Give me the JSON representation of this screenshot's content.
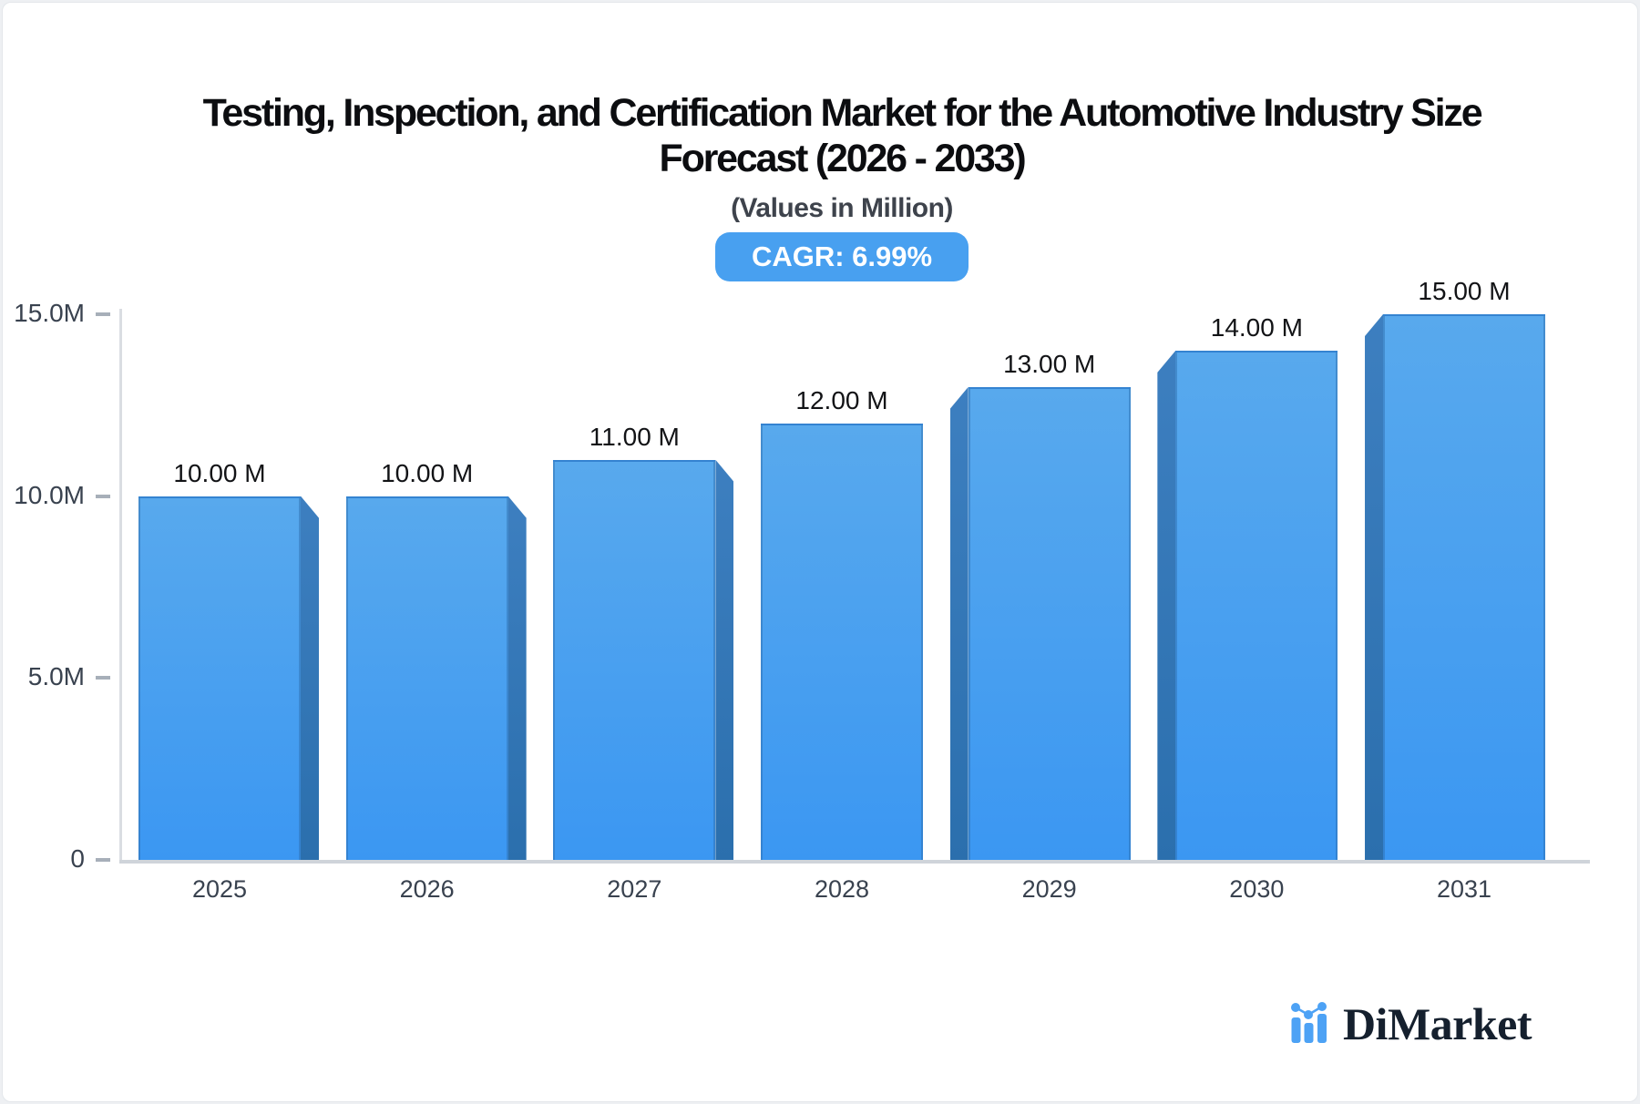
{
  "header": {
    "title_line1": "Testing, Inspection, and Certification Market for the Automotive Industry Size",
    "title_line2": "Forecast (2026 - 2033)",
    "subtitle": "(Values in Million)",
    "cagr_badge": "CAGR: 6.99%"
  },
  "chart_data": {
    "type": "bar",
    "title": "Testing, Inspection, and Certification Market for the Automotive Industry Size Forecast (2026 - 2033)",
    "subtitle": "(Values in Million)",
    "cagr": "6.99%",
    "categories": [
      "2025",
      "2026",
      "2027",
      "2028",
      "2029",
      "2030",
      "2031"
    ],
    "values": [
      10,
      10,
      11,
      12,
      13,
      14,
      15
    ],
    "value_labels": [
      "10.00 M",
      "10.00 M",
      "11.00 M",
      "12.00 M",
      "13.00 M",
      "14.00 M",
      "15.00 M"
    ],
    "unit": "Million",
    "ylim": [
      0,
      15
    ],
    "y_ticks": [
      {
        "value": 15,
        "label": "15.0M"
      },
      {
        "value": 10,
        "label": "10.0M"
      },
      {
        "value": 5,
        "label": "5.0M"
      },
      {
        "value": 0,
        "label": "0"
      }
    ],
    "grid": false,
    "legend": "none",
    "colors": {
      "bar_top": "#58a9ed",
      "bar_bottom": "#3b97f2",
      "bar_side": "#2b6fad",
      "badge_bg": "#48a0f0",
      "axis": "#cfd4da",
      "label_text": "#39424f"
    }
  },
  "footer": {
    "brand": "DiMarket"
  }
}
